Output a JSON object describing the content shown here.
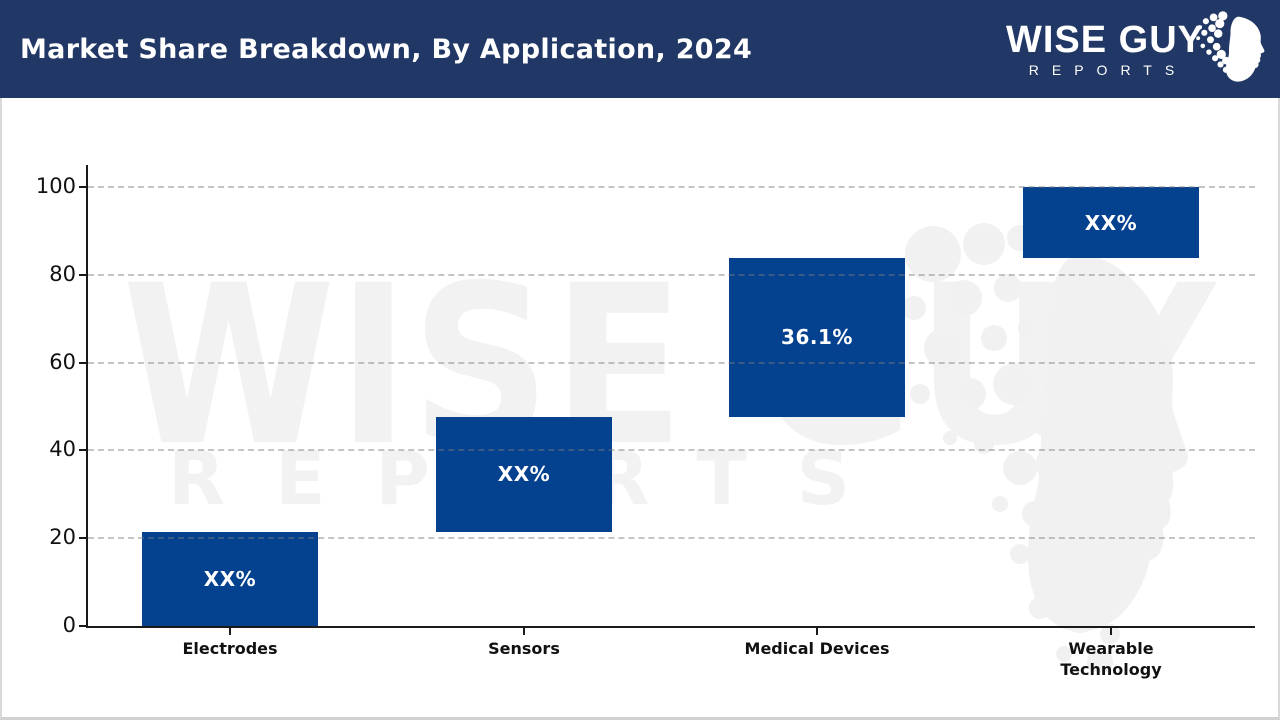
{
  "header": {
    "title": "Market Share Breakdown, By Application, 2024",
    "logo": {
      "line1": "WISE GUY",
      "line2": "REPORTS"
    }
  },
  "watermark": {
    "line1": "WISE GUY",
    "line2": "REPORTS"
  },
  "colors": {
    "header_bg": "#213765",
    "bar_fill": "#04418f",
    "bar_label_text": "#ffffff",
    "axis": "#1a1a1a",
    "gridline": "#c8c8c8",
    "watermark": "#f2f2f2",
    "page_border": "#d9d9d9",
    "title_text": "#ffffff"
  },
  "chart_data": {
    "type": "bar",
    "variant": "waterfall-floating-bars",
    "title": "Market Share Breakdown, By Application, 2024",
    "categories": [
      "Electrodes",
      "Sensors",
      "Medical Devices",
      "Wearable Technology"
    ],
    "segments": [
      {
        "category": "Electrodes",
        "start": 0,
        "end": 21.4,
        "label": "XX%"
      },
      {
        "category": "Sensors",
        "start": 21.4,
        "end": 47.7,
        "label": "XX%"
      },
      {
        "category": "Medical Devices",
        "start": 47.7,
        "end": 83.8,
        "label": "36.1%"
      },
      {
        "category": "Wearable Technology",
        "start": 83.8,
        "end": 100,
        "label": "XX%"
      }
    ],
    "xlabel": "",
    "ylabel": "",
    "ylim": [
      0,
      100
    ],
    "yticks": [
      0,
      20,
      40,
      60,
      80,
      100
    ],
    "grid": "horizontal-dashed-overlay",
    "legend": "none",
    "bar_color": "#04418f"
  }
}
